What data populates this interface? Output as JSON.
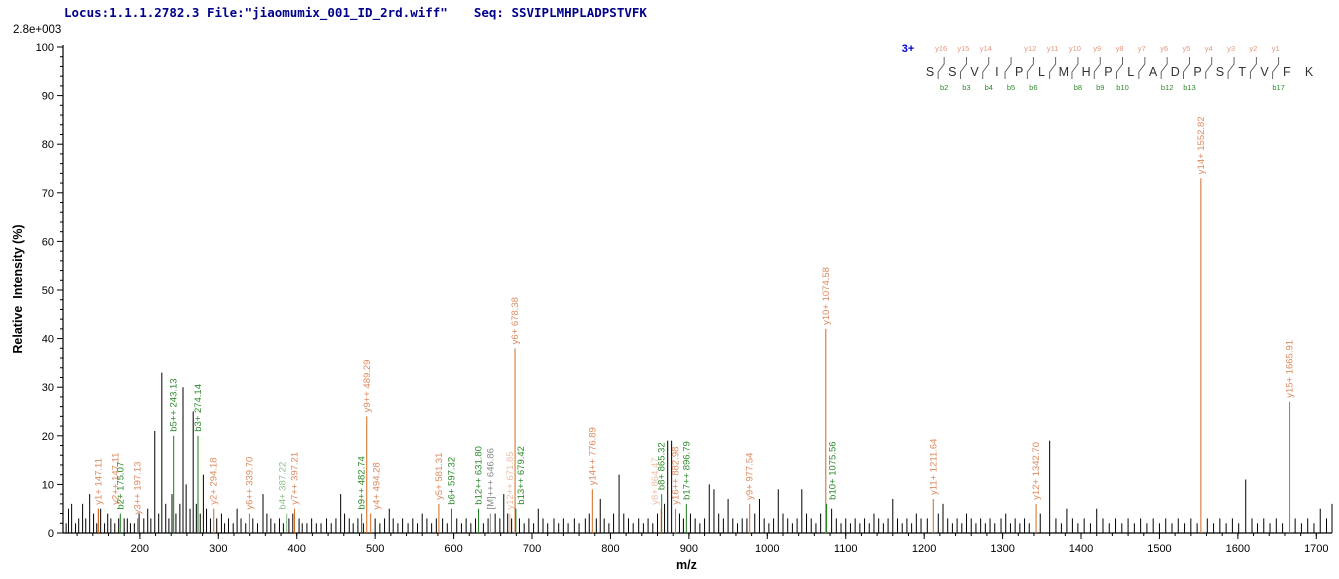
{
  "header": {
    "locus": "Locus:1.1.1.2782.3",
    "file": "File:\"jiaomumix_001_ID_2rd.wiff\"",
    "seq": "Seq: SSVIPLMHPLADPSTVFK"
  },
  "scale_label": "2.8e+003",
  "chart_data": {
    "type": "bar",
    "subtype": "ms2-fragment-stick-spectrum",
    "title": "",
    "xlabel": "m/z",
    "ylabel": "Relative  Intensity (%)",
    "xlim": [
      102,
      1720
    ],
    "ylim": [
      0,
      100
    ],
    "x_major_ticks": [
      200,
      300,
      400,
      500,
      600,
      700,
      800,
      900,
      1000,
      1100,
      1200,
      1300,
      1400,
      1500,
      1600,
      1700
    ],
    "x_minor_step": 20,
    "y_major_step": 10,
    "y_minor_step": 2,
    "grid": false,
    "legend": "none",
    "colors": {
      "y_ion": "#d2691e",
      "y_label": "#dd8a5f",
      "b_ion": "#1e7d1e",
      "b_label": "#2e8b2e",
      "precursor": "#8a8a8a",
      "unassigned": "#000000",
      "header_text": "#00008b",
      "charge_text": "#0000cc"
    },
    "annotated_peaks": [
      {
        "ion": "y1+",
        "mz": 147.11,
        "intensity": 5,
        "series": "y"
      },
      {
        "ion": "y2++",
        "mz": 147.11,
        "intensity": 5,
        "series": "y",
        "label_dx": 17
      },
      {
        "ion": "b2+",
        "mz": 175.07,
        "intensity": 4,
        "series": "b"
      },
      {
        "ion": "y3++",
        "mz": 197.13,
        "intensity": 3,
        "series": "y"
      },
      {
        "ion": "b5++",
        "mz": 243.13,
        "intensity": 20,
        "series": "b"
      },
      {
        "ion": "b3+",
        "mz": 274.14,
        "intensity": 20,
        "series": "b"
      },
      {
        "ion": "y2+",
        "mz": 294.18,
        "intensity": 5,
        "series": "y"
      },
      {
        "ion": "y6++",
        "mz": 339.7,
        "intensity": 4,
        "series": "y"
      },
      {
        "ion": "b4+",
        "mz": 387.22,
        "intensity": 4,
        "series": "b",
        "faint": true,
        "label_dx": -4
      },
      {
        "ion": "y7++",
        "mz": 397.21,
        "intensity": 5,
        "series": "y"
      },
      {
        "ion": "b9++",
        "mz": 482.74,
        "intensity": 4,
        "series": "b"
      },
      {
        "ion": "y9++",
        "mz": 489.29,
        "intensity": 24,
        "series": "y"
      },
      {
        "ion": "y4+",
        "mz": 494.28,
        "intensity": 4,
        "series": "y",
        "label_dx": 6
      },
      {
        "ion": "y5+",
        "mz": 581.31,
        "intensity": 6,
        "series": "y"
      },
      {
        "ion": "b6+",
        "mz": 597.32,
        "intensity": 5,
        "series": "b"
      },
      {
        "ion": "b12++",
        "mz": 631.8,
        "intensity": 5,
        "series": "b"
      },
      {
        "ion": "[M]+++",
        "mz": 646.86,
        "intensity": 4,
        "series": "precursor"
      },
      {
        "ion": "y12++",
        "mz": 671.85,
        "intensity": 4,
        "series": "y",
        "faint": true
      },
      {
        "ion": "y6+",
        "mz": 678.38,
        "intensity": 38,
        "series": "y"
      },
      {
        "ion": "b13++",
        "mz": 679.42,
        "intensity": 5,
        "series": "b",
        "label_dx": 5
      },
      {
        "ion": "y14++",
        "mz": 776.89,
        "intensity": 9,
        "series": "y"
      },
      {
        "ion": "y8+",
        "mz": 864.47,
        "intensity": 5,
        "series": "y",
        "faint": true,
        "label_dx": -6
      },
      {
        "ion": "b8+",
        "mz": 865.32,
        "intensity": 8,
        "series": "b"
      },
      {
        "ion": "y16++",
        "mz": 882.98,
        "intensity": 5,
        "series": "y"
      },
      {
        "ion": "b17++",
        "mz": 896.79,
        "intensity": 6,
        "series": "b"
      },
      {
        "ion": "y9+",
        "mz": 977.54,
        "intensity": 6,
        "series": "y"
      },
      {
        "ion": "y10+",
        "mz": 1074.58,
        "intensity": 42,
        "series": "y"
      },
      {
        "ion": "b10+",
        "mz": 1075.56,
        "intensity": 6,
        "series": "b",
        "label_dx": 6
      },
      {
        "ion": "y11+",
        "mz": 1211.64,
        "intensity": 7,
        "series": "y"
      },
      {
        "ion": "y12+",
        "mz": 1342.7,
        "intensity": 6,
        "series": "y"
      },
      {
        "ion": "y14+",
        "mz": 1552.82,
        "intensity": 73,
        "series": "y"
      },
      {
        "ion": "y15+",
        "mz": 1665.91,
        "intensity": 27,
        "series": "y"
      }
    ],
    "background_peaks": [
      [
        106,
        2
      ],
      [
        109,
        5
      ],
      [
        113,
        6
      ],
      [
        118,
        2
      ],
      [
        122,
        3
      ],
      [
        127,
        6
      ],
      [
        131,
        3
      ],
      [
        136,
        8
      ],
      [
        141,
        4
      ],
      [
        145,
        2
      ],
      [
        150,
        5
      ],
      [
        155,
        2
      ],
      [
        159,
        4
      ],
      [
        163,
        3
      ],
      [
        168,
        2
      ],
      [
        173,
        3
      ],
      [
        180,
        3
      ],
      [
        184,
        3
      ],
      [
        188,
        2
      ],
      [
        193,
        2
      ],
      [
        199,
        4
      ],
      [
        205,
        3
      ],
      [
        210,
        5
      ],
      [
        214,
        3
      ],
      [
        219,
        21
      ],
      [
        224,
        4
      ],
      [
        228,
        33
      ],
      [
        233,
        6
      ],
      [
        237,
        3
      ],
      [
        241,
        8
      ],
      [
        246,
        4
      ],
      [
        251,
        6
      ],
      [
        255,
        30
      ],
      [
        259,
        10
      ],
      [
        264,
        5
      ],
      [
        268,
        25
      ],
      [
        272,
        6
      ],
      [
        277,
        4
      ],
      [
        281,
        12
      ],
      [
        285,
        5
      ],
      [
        290,
        3
      ],
      [
        298,
        3
      ],
      [
        304,
        4
      ],
      [
        308,
        2
      ],
      [
        313,
        3
      ],
      [
        319,
        2
      ],
      [
        324,
        5
      ],
      [
        329,
        3
      ],
      [
        335,
        2
      ],
      [
        344,
        3
      ],
      [
        350,
        2
      ],
      [
        357,
        8
      ],
      [
        362,
        4
      ],
      [
        367,
        3
      ],
      [
        372,
        2
      ],
      [
        378,
        3
      ],
      [
        383,
        2
      ],
      [
        390,
        3
      ],
      [
        395,
        4
      ],
      [
        403,
        3
      ],
      [
        407,
        2
      ],
      [
        413,
        2
      ],
      [
        419,
        3
      ],
      [
        425,
        2
      ],
      [
        431,
        2
      ],
      [
        438,
        3
      ],
      [
        444,
        2
      ],
      [
        450,
        3
      ],
      [
        456,
        8
      ],
      [
        461,
        4
      ],
      [
        467,
        3
      ],
      [
        472,
        2
      ],
      [
        478,
        3
      ],
      [
        485,
        2
      ],
      [
        500,
        3
      ],
      [
        506,
        2
      ],
      [
        512,
        3
      ],
      [
        518,
        5
      ],
      [
        523,
        3
      ],
      [
        529,
        2
      ],
      [
        535,
        3
      ],
      [
        542,
        2
      ],
      [
        548,
        3
      ],
      [
        554,
        2
      ],
      [
        560,
        4
      ],
      [
        566,
        3
      ],
      [
        572,
        2
      ],
      [
        578,
        3
      ],
      [
        586,
        3
      ],
      [
        592,
        2
      ],
      [
        604,
        3
      ],
      [
        610,
        2
      ],
      [
        616,
        3
      ],
      [
        622,
        2
      ],
      [
        628,
        3
      ],
      [
        638,
        2
      ],
      [
        644,
        3
      ],
      [
        653,
        4
      ],
      [
        659,
        3
      ],
      [
        664,
        8
      ],
      [
        669,
        4
      ],
      [
        674,
        3
      ],
      [
        684,
        3
      ],
      [
        690,
        2
      ],
      [
        696,
        3
      ],
      [
        702,
        2
      ],
      [
        708,
        5
      ],
      [
        714,
        3
      ],
      [
        720,
        2
      ],
      [
        728,
        3
      ],
      [
        734,
        2
      ],
      [
        740,
        3
      ],
      [
        746,
        2
      ],
      [
        754,
        3
      ],
      [
        760,
        2
      ],
      [
        768,
        3
      ],
      [
        773,
        4
      ],
      [
        782,
        3
      ],
      [
        787,
        7
      ],
      [
        792,
        3
      ],
      [
        798,
        2
      ],
      [
        804,
        4
      ],
      [
        811,
        12
      ],
      [
        817,
        4
      ],
      [
        823,
        3
      ],
      [
        829,
        2
      ],
      [
        836,
        3
      ],
      [
        842,
        2
      ],
      [
        848,
        3
      ],
      [
        854,
        2
      ],
      [
        860,
        4
      ],
      [
        869,
        6
      ],
      [
        873,
        19
      ],
      [
        878,
        19
      ],
      [
        888,
        4
      ],
      [
        893,
        3
      ],
      [
        902,
        4
      ],
      [
        908,
        3
      ],
      [
        914,
        2
      ],
      [
        920,
        3
      ],
      [
        926,
        10
      ],
      [
        932,
        9
      ],
      [
        938,
        4
      ],
      [
        944,
        3
      ],
      [
        950,
        7
      ],
      [
        956,
        3
      ],
      [
        962,
        2
      ],
      [
        968,
        3
      ],
      [
        974,
        3
      ],
      [
        984,
        4
      ],
      [
        990,
        7
      ],
      [
        996,
        3
      ],
      [
        1002,
        2
      ],
      [
        1008,
        3
      ],
      [
        1014,
        9
      ],
      [
        1020,
        4
      ],
      [
        1026,
        3
      ],
      [
        1032,
        2
      ],
      [
        1038,
        3
      ],
      [
        1044,
        9
      ],
      [
        1050,
        4
      ],
      [
        1056,
        3
      ],
      [
        1062,
        2
      ],
      [
        1068,
        4
      ],
      [
        1082,
        5
      ],
      [
        1088,
        3
      ],
      [
        1094,
        2
      ],
      [
        1100,
        3
      ],
      [
        1106,
        2
      ],
      [
        1112,
        3
      ],
      [
        1118,
        2
      ],
      [
        1124,
        3
      ],
      [
        1130,
        2
      ],
      [
        1136,
        4
      ],
      [
        1142,
        3
      ],
      [
        1148,
        2
      ],
      [
        1154,
        3
      ],
      [
        1160,
        7
      ],
      [
        1166,
        3
      ],
      [
        1172,
        2
      ],
      [
        1178,
        3
      ],
      [
        1184,
        2
      ],
      [
        1190,
        4
      ],
      [
        1196,
        3
      ],
      [
        1204,
        3
      ],
      [
        1218,
        4
      ],
      [
        1224,
        6
      ],
      [
        1230,
        3
      ],
      [
        1236,
        2
      ],
      [
        1242,
        3
      ],
      [
        1248,
        2
      ],
      [
        1254,
        4
      ],
      [
        1260,
        3
      ],
      [
        1266,
        2
      ],
      [
        1272,
        3
      ],
      [
        1278,
        2
      ],
      [
        1284,
        3
      ],
      [
        1290,
        2
      ],
      [
        1298,
        3
      ],
      [
        1304,
        4
      ],
      [
        1310,
        2
      ],
      [
        1316,
        3
      ],
      [
        1322,
        2
      ],
      [
        1328,
        3
      ],
      [
        1334,
        2
      ],
      [
        1348,
        4
      ],
      [
        1360,
        19
      ],
      [
        1368,
        3
      ],
      [
        1375,
        2
      ],
      [
        1382,
        5
      ],
      [
        1389,
        3
      ],
      [
        1396,
        2
      ],
      [
        1404,
        3
      ],
      [
        1412,
        2
      ],
      [
        1420,
        5
      ],
      [
        1428,
        3
      ],
      [
        1436,
        2
      ],
      [
        1444,
        3
      ],
      [
        1452,
        2
      ],
      [
        1460,
        3
      ],
      [
        1468,
        2
      ],
      [
        1476,
        3
      ],
      [
        1484,
        2
      ],
      [
        1492,
        3
      ],
      [
        1500,
        2
      ],
      [
        1508,
        3
      ],
      [
        1516,
        2
      ],
      [
        1524,
        3
      ],
      [
        1532,
        2
      ],
      [
        1540,
        3
      ],
      [
        1548,
        2
      ],
      [
        1561,
        3
      ],
      [
        1569,
        2
      ],
      [
        1577,
        3
      ],
      [
        1585,
        2
      ],
      [
        1593,
        3
      ],
      [
        1601,
        2
      ],
      [
        1610,
        11
      ],
      [
        1618,
        3
      ],
      [
        1625,
        2
      ],
      [
        1633,
        3
      ],
      [
        1641,
        2
      ],
      [
        1649,
        3
      ],
      [
        1657,
        2
      ],
      [
        1673,
        3
      ],
      [
        1681,
        2
      ],
      [
        1689,
        3
      ],
      [
        1697,
        2
      ],
      [
        1705,
        5
      ],
      [
        1713,
        3
      ],
      [
        1720,
        6
      ]
    ]
  },
  "sequence_panel": {
    "charge": "3+",
    "residues": [
      "S",
      "S",
      "V",
      "I",
      "P",
      "L",
      "M",
      "H",
      "P",
      "L",
      "A",
      "D",
      "P",
      "S",
      "T",
      "V",
      "F",
      "K"
    ],
    "gaps": [
      {},
      {
        "y": "y16",
        "b": "b2"
      },
      {
        "y": "y15",
        "b": "b3"
      },
      {
        "y": "y14",
        "b": "b4"
      },
      {
        "b": "b5"
      },
      {
        "y": "y12",
        "b": "b6"
      },
      {
        "y": "y11"
      },
      {
        "y": "y10",
        "b": "b8"
      },
      {
        "y": "y9",
        "b": "b9"
      },
      {
        "y": "y8",
        "b": "b10"
      },
      {
        "y": "y7"
      },
      {
        "y": "y6",
        "b": "b12"
      },
      {
        "y": "y5",
        "b": "b13"
      },
      {
        "y": "y4"
      },
      {
        "y": "y3"
      },
      {
        "y": "y2"
      },
      {
        "y": "y1",
        "b": "b17"
      }
    ]
  }
}
